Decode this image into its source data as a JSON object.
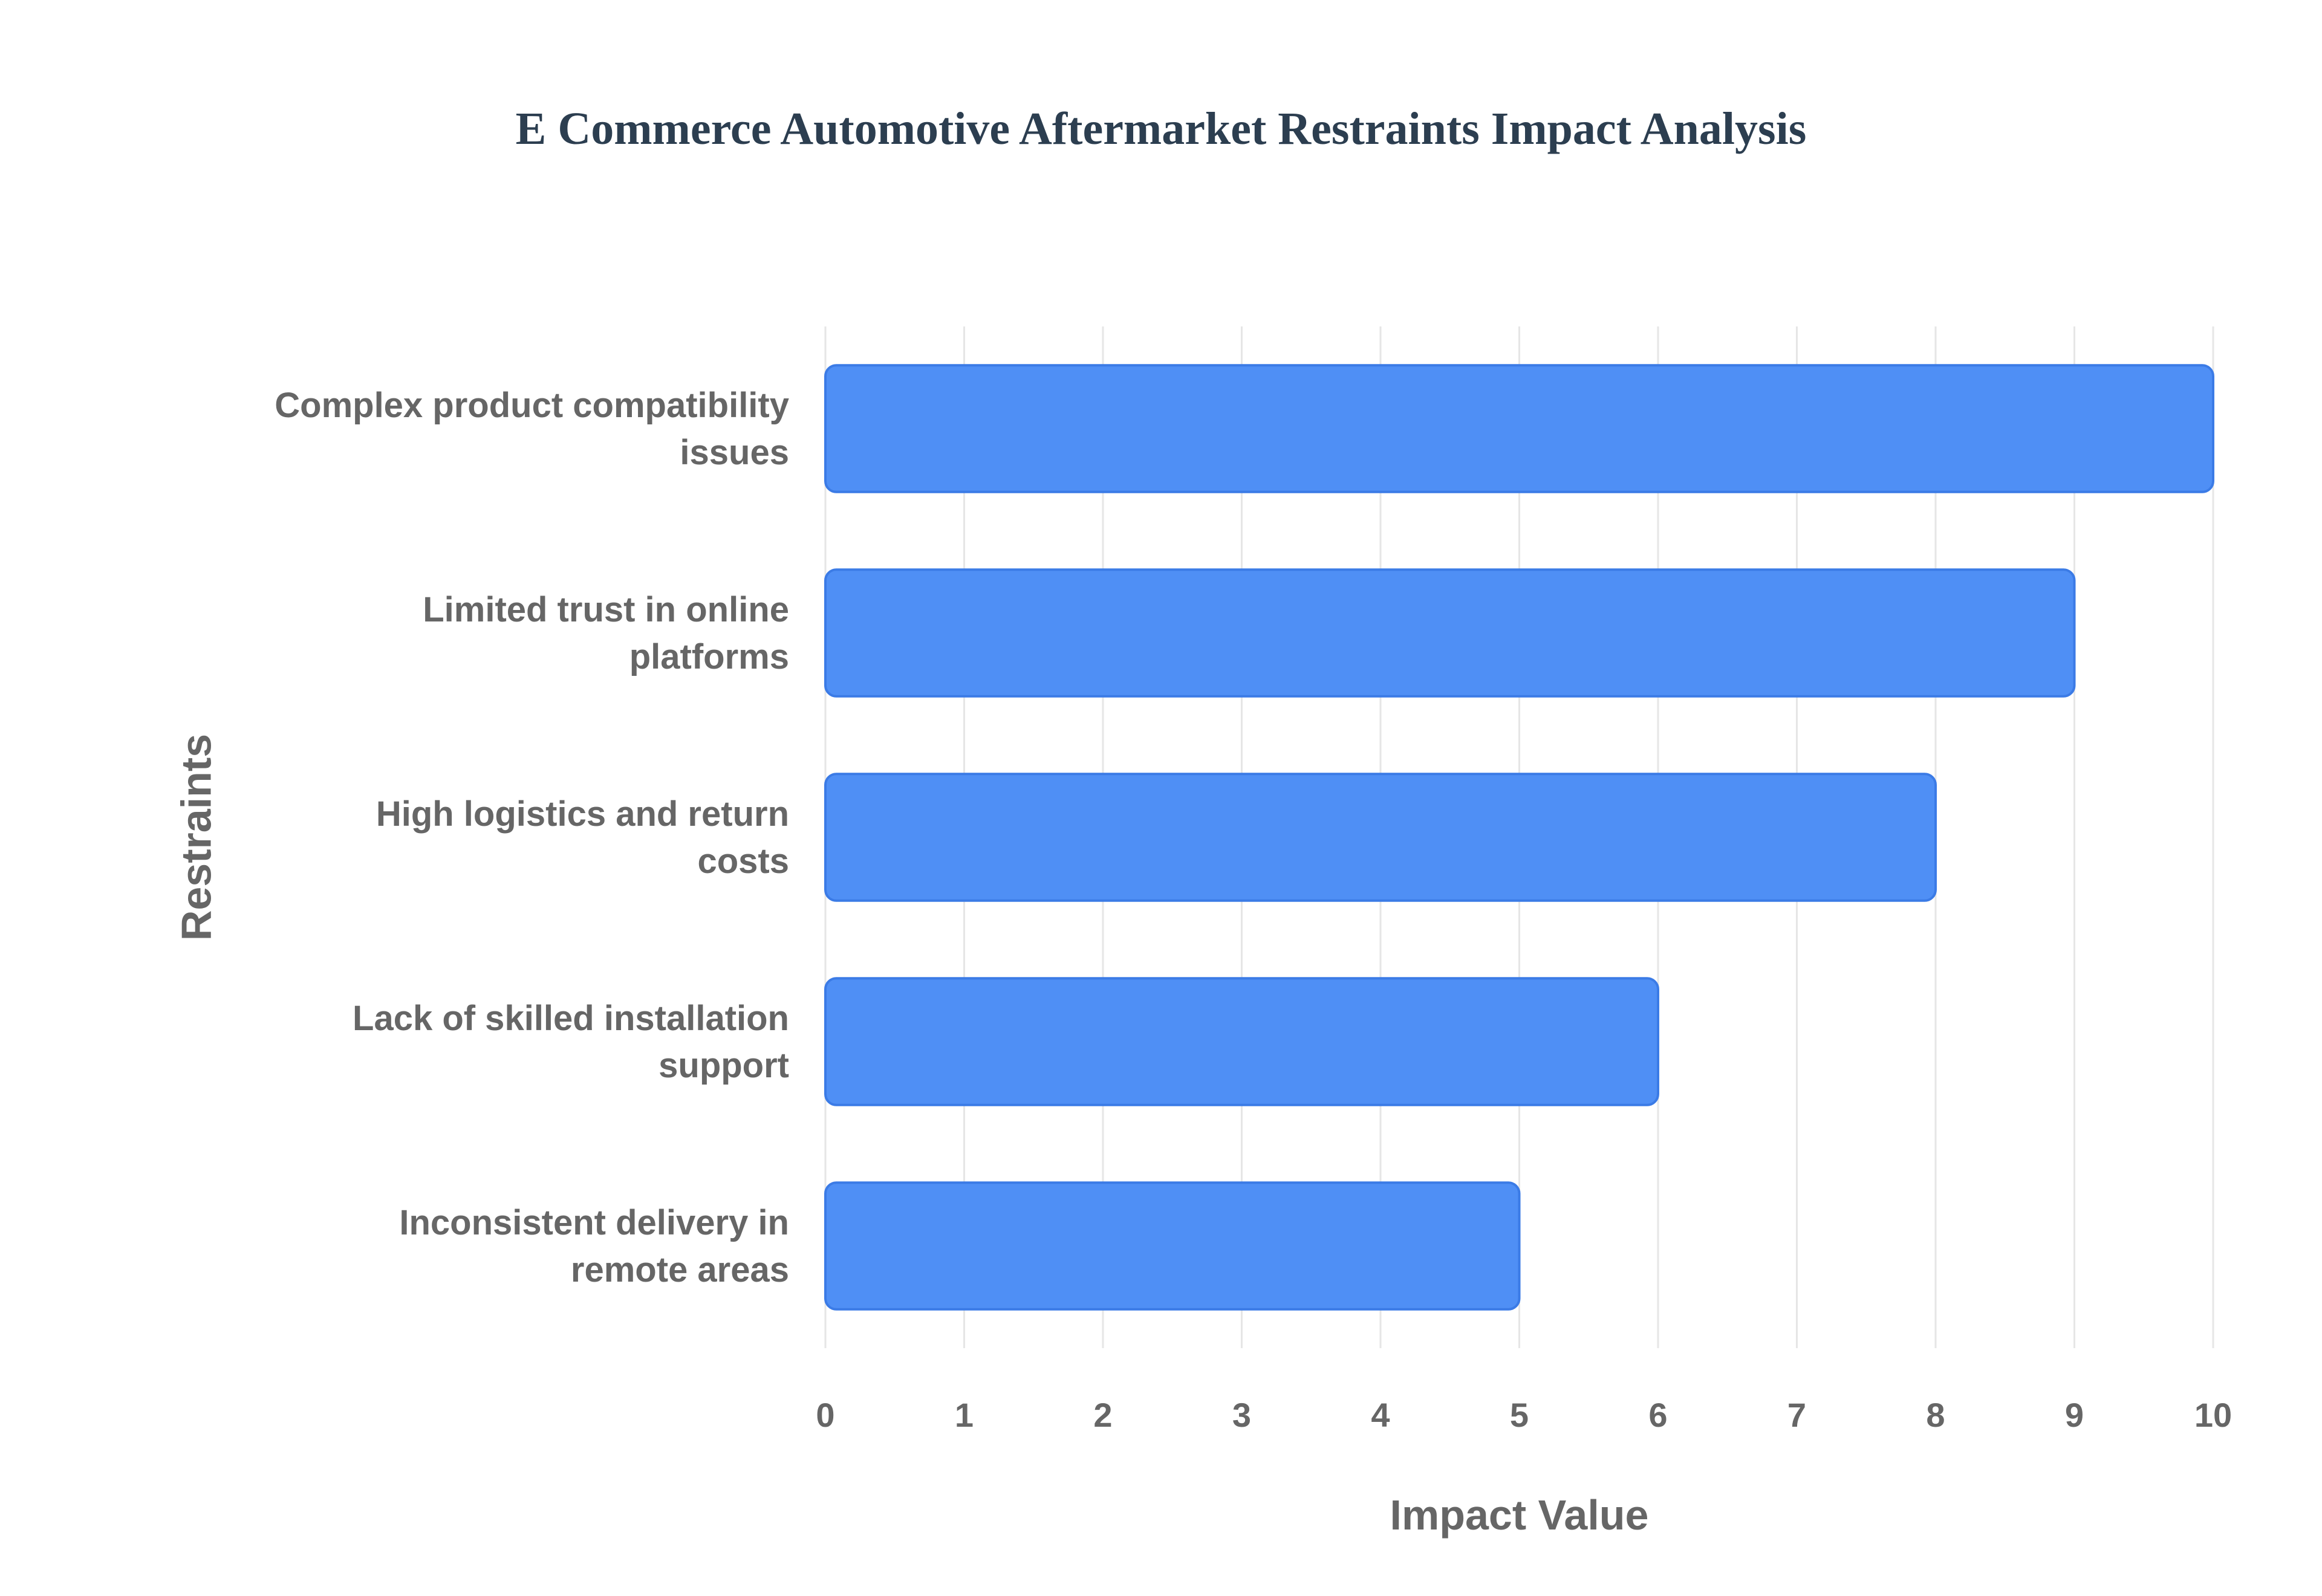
{
  "chart_data": {
    "type": "bar",
    "orientation": "horizontal",
    "title": "E Commerce Automotive Aftermarket Restraints Impact Analysis",
    "xlabel": "Impact Value",
    "ylabel": "Restraints",
    "categories": [
      [
        "Complex product compatibility",
        "issues"
      ],
      [
        "Limited trust in online",
        "platforms"
      ],
      [
        "High logistics and return",
        "costs"
      ],
      [
        "Lack of skilled installation",
        "support"
      ],
      [
        "Inconsistent delivery in",
        "remote areas"
      ]
    ],
    "values": [
      10,
      9,
      8,
      6,
      5
    ],
    "xlim": [
      0,
      10
    ],
    "xticks": [
      "0",
      "1",
      "2",
      "3",
      "4",
      "5",
      "6",
      "7",
      "8",
      "9",
      "10"
    ],
    "grid": true,
    "legend": "none",
    "colors": {
      "bar_fill": "#4f8ff5",
      "bar_stroke": "#3b7be6",
      "grid": "#e6e6e6",
      "text": "#666666",
      "title": "#2c3e50"
    }
  }
}
